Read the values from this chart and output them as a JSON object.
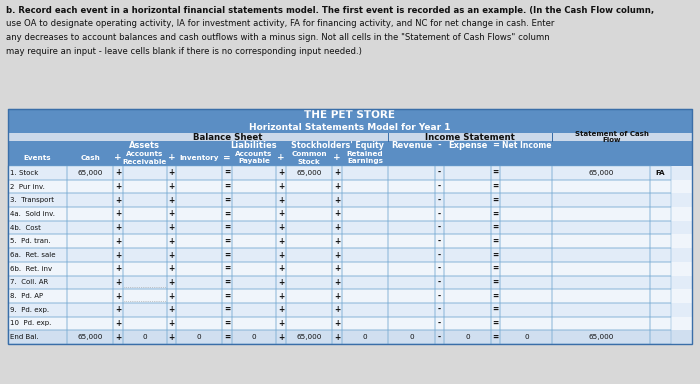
{
  "title_store": "THE PET STORE",
  "title_model": "Horizontal Statements Model for Year 1",
  "instruction_line1": "b. Record each event in a horizontal financial statements model. The first event is recorded as an example. (In the Cash Flow column,",
  "instruction_line2": "use OA to designate operating activity, IA for investment activity, FA for financing activity, and NC for net change in cash. Enter",
  "instruction_line3": "any decreases to account balances and cash outflows with a minus sign. Not all cells in the \"Statement of Cash Flows\" column",
  "instruction_line4": "may require an input - leave cells blank if there is no corresponding input needed.)",
  "fig_bg": "#d8d8d8",
  "instr_bg": "#d8d8d8",
  "table_hdr_bg": "#5b8ec4",
  "row_odd_bg": "#dce8f5",
  "row_even_bg": "#eef3fa",
  "end_bal_bg": "#dce8f5",
  "cell_border": "#7aadd4",
  "events": [
    "1. Stock",
    "2  Pur inv.",
    "3.  Transport",
    "4a.  Sold inv.",
    "4b.  Cost",
    "5.  Pd. tran.",
    "6a.  Ret. sale",
    "6b.  Ret. inv",
    "7.  Coll. AR",
    "8.  Pd. AP",
    "9.  Pd. exp.",
    "10  Pd. exp.",
    "End Bal."
  ],
  "row1_cash": "65,000",
  "row1_cs": "65,000",
  "row1_scf_val": "65,000",
  "row1_scf_lbl": "FA",
  "endb_cash": "65,000",
  "endb_ar": "0",
  "endb_inv": "0",
  "endb_ap": "0",
  "endb_cs": "65,000",
  "endb_re": "0",
  "endb_rev": "0",
  "endb_exp": "0",
  "endb_ni": "0",
  "endb_scf": "65,000"
}
